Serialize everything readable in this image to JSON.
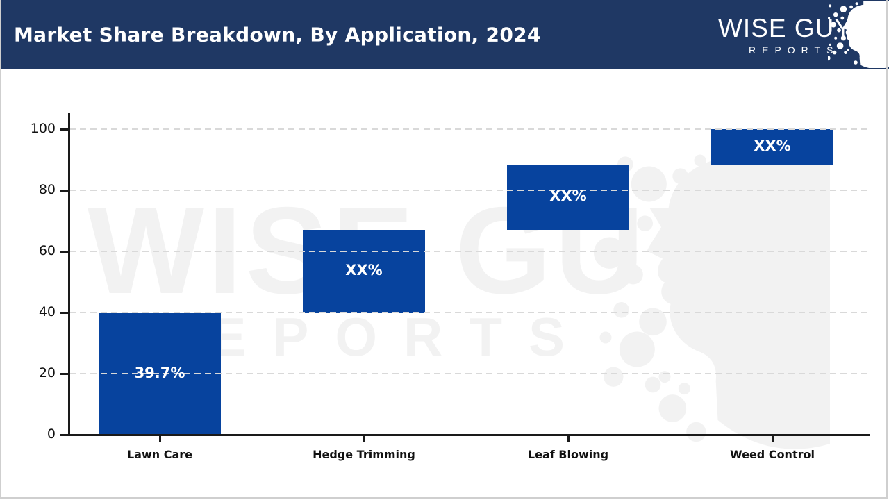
{
  "header": {
    "title": "Market Share Breakdown, By Application, 2024",
    "logo": {
      "brand": "WISE GUY",
      "sub": "REPORTS"
    }
  },
  "watermark": {
    "brand": "WISE GUY",
    "sub": "REPORTS"
  },
  "chart_data": {
    "type": "bar",
    "subtype": "floating-waterfall",
    "title": "Market Share Breakdown, By Application, 2024",
    "categories": [
      "Lawn Care",
      "Hedge Trimming",
      "Leaf Blowing",
      "Weed Control"
    ],
    "series": [
      {
        "name": "Market share (%)",
        "segments": [
          {
            "category": "Lawn Care",
            "start": 0,
            "end": 39.7,
            "value": 39.7,
            "label": "39.7%"
          },
          {
            "category": "Hedge Trimming",
            "start": 39.7,
            "end": 67.0,
            "value": 27.3,
            "label": "XX%"
          },
          {
            "category": "Leaf Blowing",
            "start": 67.0,
            "end": 88.3,
            "value": 21.3,
            "label": "XX%"
          },
          {
            "category": "Weed Control",
            "start": 88.3,
            "end": 100.0,
            "value": 11.7,
            "label": "XX%"
          }
        ]
      }
    ],
    "xlabel": "",
    "ylabel": "",
    "ylim": [
      0,
      105
    ],
    "yticks": [
      0,
      20,
      40,
      60,
      80,
      100
    ],
    "grid": "horizontal-dashed",
    "legend": "none",
    "bar_color": "#07439e",
    "bar_label_color": "#ffffff"
  },
  "colors": {
    "header_bg": "#1f3864",
    "bar": "#07439e",
    "grid": "#d9d9d9",
    "axis": "#1a1a1a",
    "watermark": "#f2f2f2",
    "page_border": "#cfcfcf",
    "title_text": "#ffffff"
  }
}
